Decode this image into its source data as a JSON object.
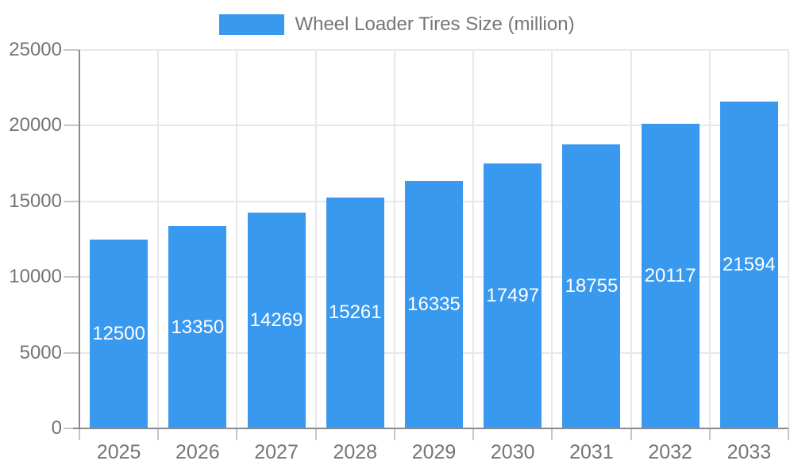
{
  "chart_data": {
    "type": "bar",
    "title": "Wheel Loader Tires Size (million)",
    "legend_position": "top",
    "categories": [
      "2025",
      "2026",
      "2027",
      "2028",
      "2029",
      "2030",
      "2031",
      "2032",
      "2033"
    ],
    "values": [
      12500,
      13350,
      14269,
      15261,
      16335,
      17497,
      18755,
      20117,
      21594
    ],
    "xlabel": "",
    "ylabel": "",
    "ylim": [
      0,
      25000
    ],
    "yticks": [
      0,
      5000,
      10000,
      15000,
      20000,
      25000
    ],
    "grid": true,
    "value_labels": "inside-center",
    "colors": {
      "bar": "#3999ee",
      "value_label": "#ffffff",
      "axis_text": "#757575",
      "axis_line": "#8a8a8a",
      "gridline": "#e8e8e8",
      "tick": "#c6c6c6",
      "background": "#ffffff"
    }
  }
}
